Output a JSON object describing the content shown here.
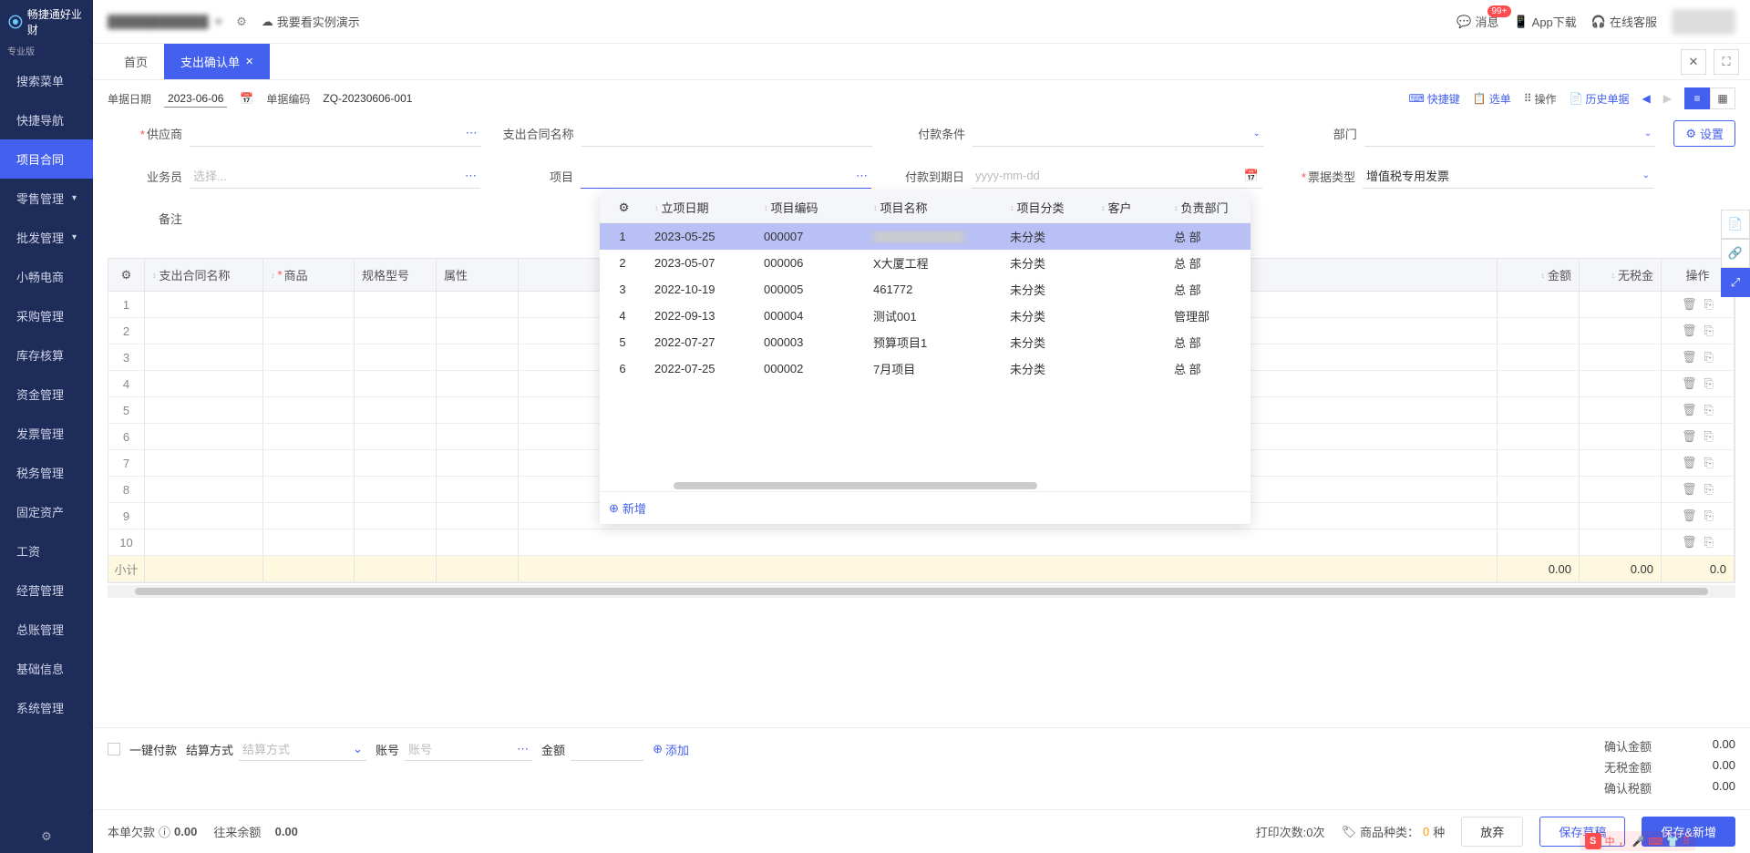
{
  "logo": {
    "brand": "畅捷通好业财",
    "edition": "专业版"
  },
  "sidebar": {
    "items": [
      {
        "label": "搜索菜单",
        "hasCaret": false
      },
      {
        "label": "快捷导航",
        "hasCaret": false
      },
      {
        "label": "项目合同",
        "hasCaret": false,
        "active": true
      },
      {
        "label": "零售管理",
        "hasCaret": true
      },
      {
        "label": "批发管理",
        "hasCaret": true
      },
      {
        "label": "小畅电商",
        "hasCaret": false
      },
      {
        "label": "采购管理",
        "hasCaret": false
      },
      {
        "label": "库存核算",
        "hasCaret": false
      },
      {
        "label": "资金管理",
        "hasCaret": false
      },
      {
        "label": "发票管理",
        "hasCaret": false
      },
      {
        "label": "税务管理",
        "hasCaret": false
      },
      {
        "label": "固定资产",
        "hasCaret": false
      },
      {
        "label": "工资",
        "hasCaret": false
      },
      {
        "label": "经营管理",
        "hasCaret": false
      },
      {
        "label": "总账管理",
        "hasCaret": false
      },
      {
        "label": "基础信息",
        "hasCaret": false
      },
      {
        "label": "系统管理",
        "hasCaret": false
      }
    ]
  },
  "topbar": {
    "orgHidden": "████████████",
    "demo": "我要看实例演示",
    "messages": "消息",
    "badge": "99+",
    "appDownload": "App下载",
    "support": "在线客服"
  },
  "tabs": {
    "home": "首页",
    "active": "支出确认单"
  },
  "toolbar": {
    "dateLabel": "单据日期",
    "dateValue": "2023-06-06",
    "codeLabel": "单据编码",
    "codeValue": "ZQ-20230606-001",
    "shortcut": "快捷键",
    "selectBill": "选单",
    "operate": "操作",
    "history": "历史单据"
  },
  "form": {
    "supplier": {
      "label": "供应商"
    },
    "contractName": {
      "label": "支出合同名称"
    },
    "payTerms": {
      "label": "付款条件"
    },
    "department": {
      "label": "部门"
    },
    "settings": "设置",
    "salesperson": {
      "label": "业务员",
      "placeholder": "选择..."
    },
    "project": {
      "label": "项目"
    },
    "dueDate": {
      "label": "付款到期日",
      "placeholder": "yyyy-mm-dd"
    },
    "invoiceType": {
      "label": "票据类型",
      "value": "增值税专用发票"
    },
    "remark": {
      "label": "备注"
    }
  },
  "grid": {
    "headers": {
      "contract": "支出合同名称",
      "product": "商品",
      "spec": "规格型号",
      "attr": "属性",
      "amount": "金额",
      "noTax": "无税金",
      "op": "操作"
    },
    "rowCount": 10,
    "subtotal": {
      "label": "小计",
      "amount": "0.00",
      "noTax": "0.00",
      "last": "0.0"
    }
  },
  "dropdown": {
    "headers": {
      "date": "立项日期",
      "code": "项目编码",
      "name": "项目名称",
      "category": "项目分类",
      "customer": "客户",
      "dept": "负责部门"
    },
    "rows": [
      {
        "n": "1",
        "date": "2023-05-25",
        "code": "000007",
        "name": "",
        "blurred": true,
        "category": "未分类",
        "customer": "",
        "dept": "总 部"
      },
      {
        "n": "2",
        "date": "2023-05-07",
        "code": "000006",
        "name": "X大厦工程",
        "category": "未分类",
        "customer": "",
        "dept": "总 部"
      },
      {
        "n": "3",
        "date": "2022-10-19",
        "code": "000005",
        "name": "461772",
        "category": "未分类",
        "customer": "",
        "dept": "总 部"
      },
      {
        "n": "4",
        "date": "2022-09-13",
        "code": "000004",
        "name": "测试001",
        "category": "未分类",
        "customer": "",
        "dept": "管理部"
      },
      {
        "n": "5",
        "date": "2022-07-27",
        "code": "000003",
        "name": "预算项目1",
        "category": "未分类",
        "customer": "",
        "dept": "总 部"
      },
      {
        "n": "6",
        "date": "2022-07-25",
        "code": "000002",
        "name": "7月项目",
        "category": "未分类",
        "customer": "",
        "dept": "总 部"
      }
    ],
    "add": "新增"
  },
  "bottom": {
    "oneClick": "一键付款",
    "settleMethod": {
      "label": "结算方式",
      "placeholder": "结算方式"
    },
    "account": {
      "label": "账号",
      "placeholder": "账号"
    },
    "amount": {
      "label": "金额"
    },
    "add": "添加",
    "totals": {
      "confirm": {
        "label": "确认金额",
        "value": "0.00"
      },
      "noTax": {
        "label": "无税金额",
        "value": "0.00"
      },
      "tax": {
        "label": "确认税额",
        "value": "0.00"
      }
    }
  },
  "footer": {
    "owed": {
      "label": "本单欠款",
      "value": "0.00"
    },
    "balance": {
      "label": "往来余额",
      "value": "0.00"
    },
    "printCount": "打印次数:0次",
    "productKinds": {
      "label": "商品种类：",
      "value": "0",
      "unit": "种"
    },
    "discard": "放弃",
    "saveDraft": "保存草稿",
    "saveNew": "保存&新增"
  },
  "ime": {
    "s": "S",
    "lang": "中"
  }
}
